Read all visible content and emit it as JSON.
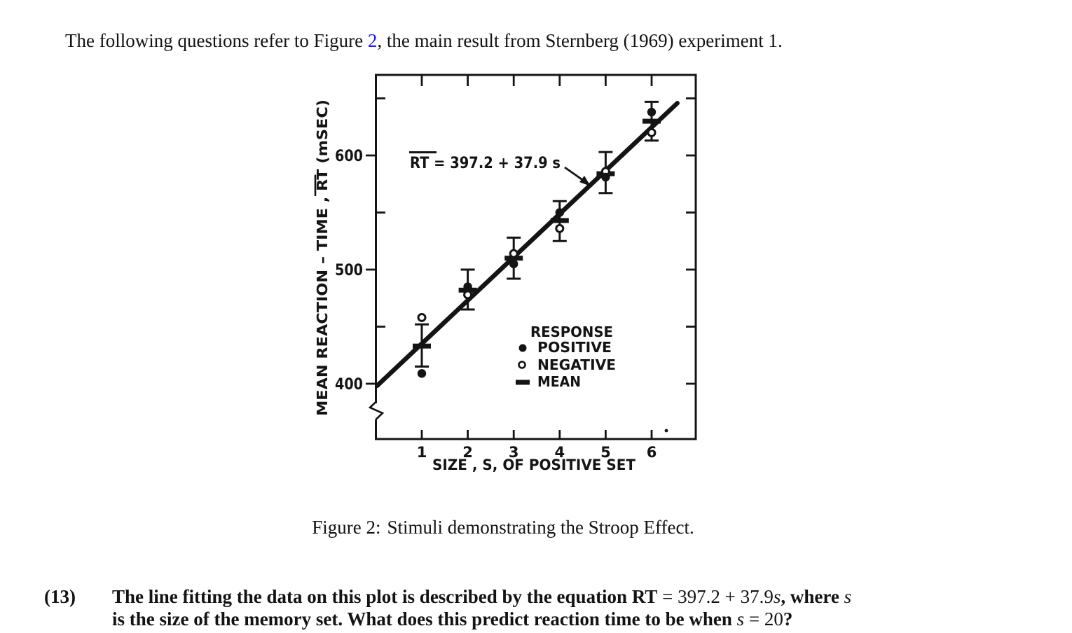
{
  "page": {
    "background_color": "#ffffff",
    "text_color": "#131313",
    "link_color": "#1a1aff",
    "ink_color": "#141414"
  },
  "header": {
    "before": "The following questions refer to Figure ",
    "figure_ref": "2",
    "after": ", the main result from Sternberg (1969) experiment 1."
  },
  "figure": {
    "legend": {
      "title": "RESPONSE",
      "items": [
        {
          "marker": "filled-circle",
          "label": "POSITIVE"
        },
        {
          "marker": "open-circle",
          "label": "NEGATIVE"
        },
        {
          "marker": "dash",
          "label": "MEAN"
        }
      ]
    }
  },
  "chart_data": {
    "type": "scatter",
    "title": "",
    "xlabel": "SIZE , S, OF POSITIVE SET",
    "ylabel": "MEAN REACTION – TIME , RT  (mSEC)",
    "ylabel_overbar_over": "RT",
    "x": [
      1,
      2,
      3,
      4,
      5,
      6
    ],
    "series": [
      {
        "name": "POSITIVE",
        "marker": "filled-circle",
        "values": [
          409,
          485,
          505,
          550,
          581,
          638
        ]
      },
      {
        "name": "NEGATIVE",
        "marker": "open-circle",
        "values": [
          458,
          478,
          514,
          536,
          586,
          620
        ]
      },
      {
        "name": "MEAN",
        "marker": "dash",
        "values": [
          433,
          482,
          510,
          543,
          584,
          630
        ]
      }
    ],
    "error_bars": {
      "on": "MEAN",
      "low": [
        415,
        465,
        492,
        525,
        567,
        613
      ],
      "high": [
        452,
        500,
        528,
        560,
        603,
        647
      ]
    },
    "fit_line": {
      "label": "RT = 397.2 + 37.9 s",
      "overbar_over": "RT",
      "intercept": 397.2,
      "slope": 37.9,
      "s_draw_range": [
        0.03,
        6.56
      ]
    },
    "xlim": [
      0,
      6.96
    ],
    "ylim_displayed": [
      390,
      668
    ],
    "xticks": [
      1,
      2,
      3,
      4,
      5,
      6
    ],
    "yticks_major": [
      400,
      500,
      600
    ],
    "yticks_minor": [
      450,
      550,
      650
    ],
    "axis_break_below": 400,
    "grid": false,
    "legend_position": "inside lower right"
  },
  "caption": {
    "label": "Figure 2:",
    "text": "Stimuli demonstrating the Stroop Effect."
  },
  "question": {
    "number": "(13)",
    "l1_a": "The line fitting the data on this plot is described by the equation ",
    "l1_rt": "RT",
    "l1_eq": " = 397.2 + 37.9",
    "l1_s1": "s",
    "l1_b": ", where ",
    "l1_s2": "s",
    "l2_a": "is the size of the memory set. What does this predict reaction time to be when ",
    "l2_s": "s",
    "l2_eq": " = 20",
    "l2_end": "?"
  }
}
